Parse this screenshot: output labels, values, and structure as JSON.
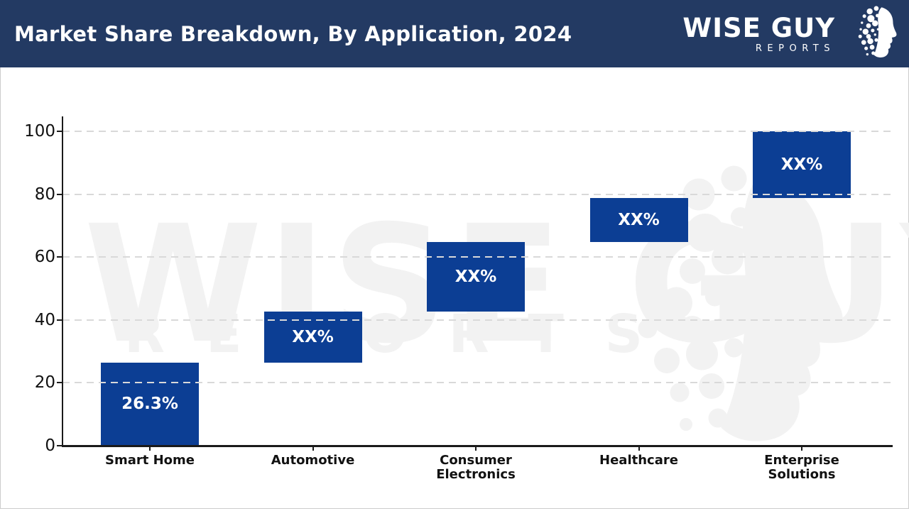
{
  "header": {
    "title": "Market Share Breakdown, By Application, 2024",
    "bg_color": "#233a63",
    "logo": {
      "line1": "WISE GUY",
      "line2": "REPORTS"
    }
  },
  "watermark": {
    "line1": "WISE GUY",
    "line2": "REPORTS"
  },
  "chart_data": {
    "type": "bar",
    "subtype": "waterfall",
    "title": "Market Share Breakdown, By Application, 2024",
    "xlabel": "",
    "ylabel": "",
    "categories": [
      "Smart Home",
      "Automotive",
      "Consumer Electronics",
      "Healthcare",
      "Enterprise Solutions"
    ],
    "segments": [
      {
        "category": "Smart Home",
        "start": 0,
        "end": 26.3,
        "label": "26.3%"
      },
      {
        "category": "Automotive",
        "start": 26.3,
        "end": 42.6,
        "label": "XX%"
      },
      {
        "category": "Consumer Electronics",
        "start": 42.6,
        "end": 64.7,
        "label": "XX%"
      },
      {
        "category": "Healthcare",
        "start": 64.7,
        "end": 78.7,
        "label": "XX%"
      },
      {
        "category": "Enterprise Solutions",
        "start": 78.7,
        "end": 100,
        "label": "XX%"
      }
    ],
    "y_ticks": [
      0,
      20,
      40,
      60,
      80,
      100
    ],
    "ylim": [
      0,
      104.5
    ],
    "grid": "horizontal dashed",
    "legend": "none",
    "bar_color": "#0c3e94",
    "bar_label_color": "#ffffff",
    "axis_color": "#1a1a1a",
    "gridline_color": "#d9d9d9"
  }
}
